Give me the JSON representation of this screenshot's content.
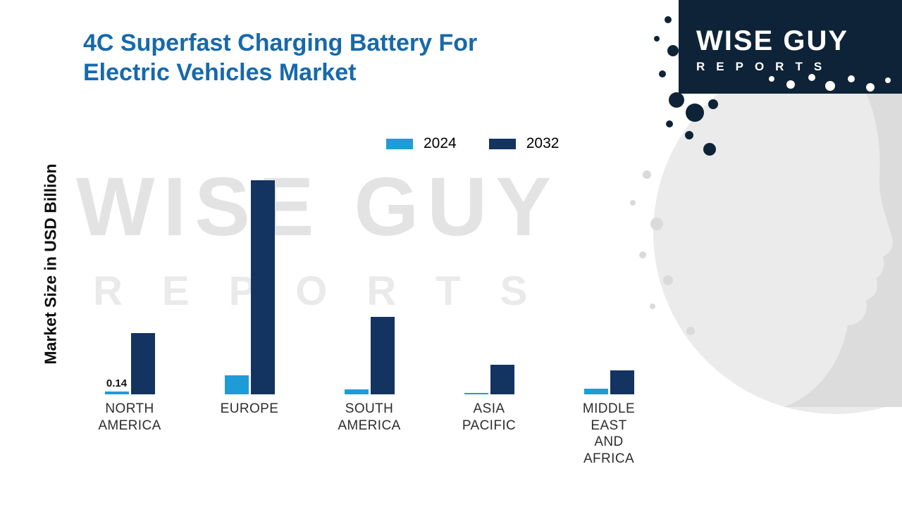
{
  "header": {
    "title_line1": "4C Superfast Charging Battery For",
    "title_line2": "Electric Vehicles Market"
  },
  "logo": {
    "name": "WISE GUY",
    "subtitle": "REPORTS"
  },
  "watermark": {
    "line1": "WISE GUY",
    "line2": "REPORTS"
  },
  "y_axis_label": "Market Size in USD Billion",
  "chart_data": {
    "type": "bar",
    "title": "4C Superfast Charging Battery For Electric Vehicles Market",
    "ylabel": "Market Size in USD Billion",
    "units": "USD Billion",
    "categories": [
      "NORTH AMERICA",
      "EUROPE",
      "SOUTH AMERICA",
      "ASIA PACIFIC",
      "MIDDLE EAST AND AFRICA"
    ],
    "series": [
      {
        "name": "2024",
        "color": "#1e9cd8",
        "values": [
          0.14,
          0.95,
          0.25,
          0.07,
          0.3
        ],
        "data_labels": [
          "0.14",
          "",
          "",
          "",
          ""
        ]
      },
      {
        "name": "2032",
        "color": "#133360",
        "values": [
          3.1,
          10.8,
          3.9,
          1.5,
          1.2
        ],
        "data_labels": [
          "",
          "",
          "",
          "",
          ""
        ]
      }
    ],
    "ylim": [
      0,
      11.2
    ],
    "grid": false,
    "legend_position": "top"
  }
}
